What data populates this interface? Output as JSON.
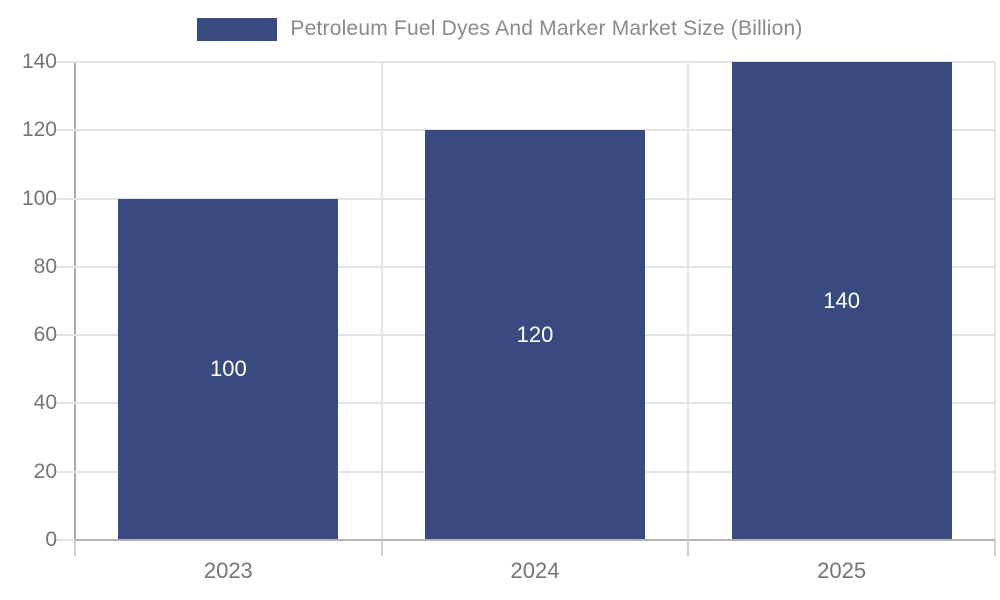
{
  "legend": {
    "label": "Petroleum Fuel Dyes And Marker Market Size (Billion)"
  },
  "colors": {
    "bar": "#384a80",
    "legend_text": "#8a8a8a",
    "axis_label": "#757575",
    "grid": "#e4e4e4",
    "y_axis_line": "#a8a8a8",
    "x_axis_line": "#b3b3b3",
    "x_tick": "#d0d0d0",
    "bar_label": "#ffffff",
    "background": "#ffffff"
  },
  "chart_data": {
    "type": "bar",
    "title": "Petroleum Fuel Dyes And Marker Market Size (Billion)",
    "categories": [
      "2023",
      "2024",
      "2025"
    ],
    "values": [
      100,
      120,
      140
    ],
    "bar_labels": [
      "100",
      "120",
      "140"
    ],
    "xlabel": "",
    "ylabel": "",
    "ylim": [
      0,
      140
    ],
    "yticks": [
      0,
      20,
      40,
      60,
      80,
      100,
      120,
      140
    ],
    "ytick_labels": [
      "0",
      "20",
      "40",
      "60",
      "80",
      "100",
      "120",
      "140"
    ],
    "grid": true,
    "legend_position": "top-center",
    "series": [
      {
        "name": "Petroleum Fuel Dyes And Marker Market Size (Billion)",
        "values": [
          100,
          120,
          140
        ]
      }
    ]
  }
}
